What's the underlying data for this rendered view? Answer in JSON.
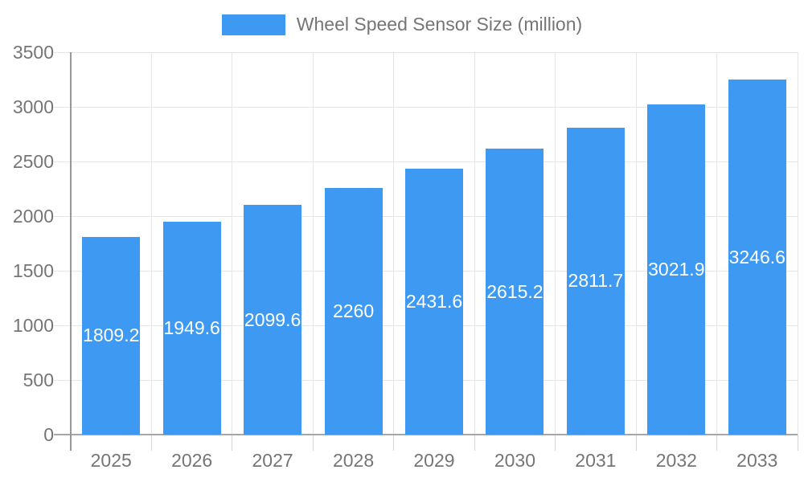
{
  "chart_data": {
    "type": "bar",
    "title": "",
    "legend": "Wheel Speed Sensor Size (million)",
    "legend_position": "top",
    "categories": [
      "2025",
      "2026",
      "2027",
      "2028",
      "2029",
      "2030",
      "2031",
      "2032",
      "2033"
    ],
    "series": [
      {
        "name": "Wheel Speed Sensor Size (million)",
        "values": [
          1809.2,
          1949.6,
          2099.6,
          2260,
          2431.6,
          2615.2,
          2811.7,
          3021.9,
          3246.6
        ],
        "value_labels": [
          "1809.2",
          "1949.6",
          "2099.6",
          "2260",
          "2431.6",
          "2615.2",
          "2811.7",
          "3021.9",
          "3246.6"
        ]
      }
    ],
    "xlabel": "",
    "ylabel": "",
    "ylim": [
      0,
      3500
    ],
    "yticks": [
      0,
      500,
      1000,
      1500,
      2000,
      2500,
      3000,
      3500
    ],
    "grid": true,
    "colors": {
      "bar": "#3d99f2",
      "value_label": "#ffffff",
      "axis_text": "#757575",
      "gridline": "#e6e6e6",
      "axis_line": "#979797",
      "background": "#ffffff"
    }
  }
}
